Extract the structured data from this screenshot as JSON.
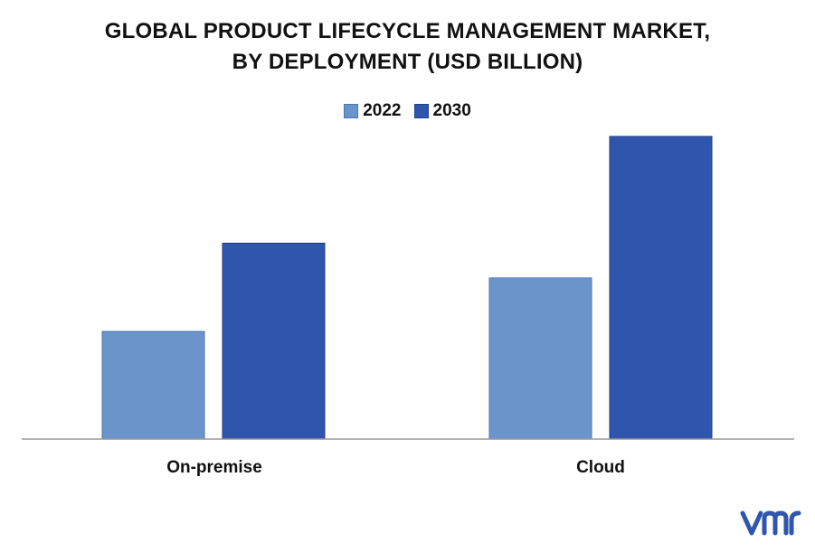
{
  "title_line1": "GLOBAL PRODUCT LIFECYCLE MANAGEMENT MARKET,",
  "title_line2": "BY DEPLOYMENT (USD BILLION)",
  "colors": {
    "2022": "#6b95ca",
    "2030": "#2f56ac",
    "axis": "#999999"
  },
  "chart_data": {
    "type": "bar",
    "title": "GLOBAL PRODUCT LIFECYCLE MANAGEMENT MARKET, BY DEPLOYMENT (USD BILLION)",
    "categories": [
      "On-premise",
      "Cloud"
    ],
    "series": [
      {
        "name": "2022",
        "values": [
          12.1,
          18.1
        ]
      },
      {
        "name": "2030",
        "values": [
          22.0,
          34.0
        ]
      }
    ],
    "xlabel": "",
    "ylabel": "",
    "ylim": [
      0,
      34
    ],
    "grid": false,
    "legend": "top-center"
  }
}
